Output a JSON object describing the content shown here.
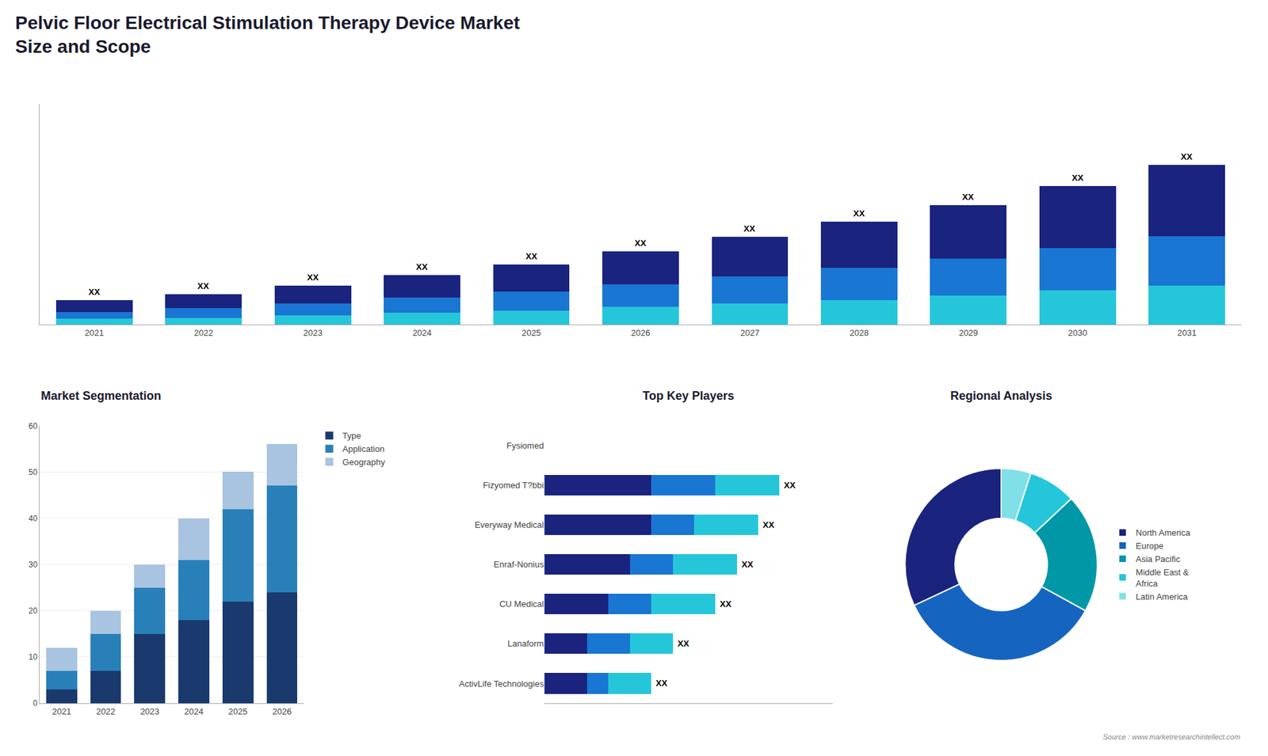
{
  "chart_data": [
    {
      "type": "bar",
      "title": "Pelvic Floor Electrical Stimulation Therapy Device Market",
      "subtitle": "Size and Scope",
      "categories": [
        "2021",
        "2022",
        "2023",
        "2024",
        "2025",
        "2026",
        "2027",
        "2028",
        "2029",
        "2030",
        "2031"
      ],
      "series": [
        {
          "color": "#26c6da",
          "values": [
            0.5,
            0.6,
            0.8,
            1.0,
            1.2,
            1.5,
            1.8,
            2.1,
            2.5,
            2.9,
            3.3
          ]
        },
        {
          "color": "#1976d2",
          "values": [
            0.6,
            0.8,
            1.0,
            1.3,
            1.6,
            1.9,
            2.3,
            2.7,
            3.1,
            3.6,
            4.2
          ]
        },
        {
          "color": "#1a237e",
          "values": [
            1.0,
            1.2,
            1.5,
            1.9,
            2.3,
            2.8,
            3.3,
            3.9,
            4.5,
            5.2,
            6.0
          ],
          "value_labels": [
            "XX",
            "XX",
            "XX",
            "XX",
            "XX",
            "XX",
            "XX",
            "XX",
            "XX",
            "XX",
            "XX"
          ]
        }
      ],
      "stacked": true,
      "ylim": [
        0,
        18.63
      ],
      "tick_labels": "x",
      "grid": false,
      "annotations": [
        "Source : www.marketresearchintellect.com"
      ]
    },
    {
      "type": "bar",
      "title": "Market Segmentation",
      "categories": [
        "2021",
        "2022",
        "2023",
        "2024",
        "2025",
        "2026"
      ],
      "series": [
        {
          "name": "Type",
          "color": "#1a3a6e",
          "values": [
            3,
            7,
            15,
            18,
            22,
            24
          ]
        },
        {
          "name": "Application",
          "color": "#2980b9",
          "values": [
            4,
            8,
            10,
            13,
            20,
            23
          ]
        },
        {
          "name": "Geography",
          "color": "#a8c4e0",
          "values": [
            5,
            5,
            5,
            9,
            8,
            9
          ]
        }
      ],
      "stacked": true,
      "ylim": [
        0,
        60
      ],
      "yticks": [
        0,
        10,
        20,
        30,
        40,
        50,
        60
      ],
      "grid": true,
      "legend": "upper right"
    },
    {
      "type": "bar",
      "title": "Top Key Players",
      "orientation": "horizontal",
      "categories": [
        "Fysiomed",
        "Fizyomed T?bbi",
        "Everyway Medical",
        "Enraf-Nonius",
        "CU Medical",
        "Lanaform",
        "ActivLife Technologies"
      ],
      "series": [
        {
          "color": "#1a237e",
          "values": [
            0,
            5,
            5,
            4,
            3,
            2,
            2
          ]
        },
        {
          "color": "#1976d2",
          "values": [
            0,
            3,
            2,
            2,
            2,
            2,
            1
          ]
        },
        {
          "color": "#26c6da",
          "values": [
            0,
            3,
            3,
            3,
            3,
            2,
            2
          ],
          "value_labels": [
            null,
            "XX",
            "XX",
            "XX",
            "XX",
            "XX",
            "XX"
          ]
        }
      ],
      "stacked": true,
      "xlim": [
        0,
        13.5
      ],
      "tick_labels": "y",
      "grid": false
    },
    {
      "type": "donut",
      "title": "Regional Analysis",
      "categories": [
        "Latin America",
        "Middle East &\nAfrica",
        "Asia Pacific",
        "Europe",
        "North America"
      ],
      "values": [
        5,
        8,
        20,
        35,
        32
      ],
      "colors": [
        "#7fe0e8",
        "#26c6da",
        "#0097a7",
        "#1565c0",
        "#1a237e"
      ],
      "legend": "right"
    }
  ]
}
